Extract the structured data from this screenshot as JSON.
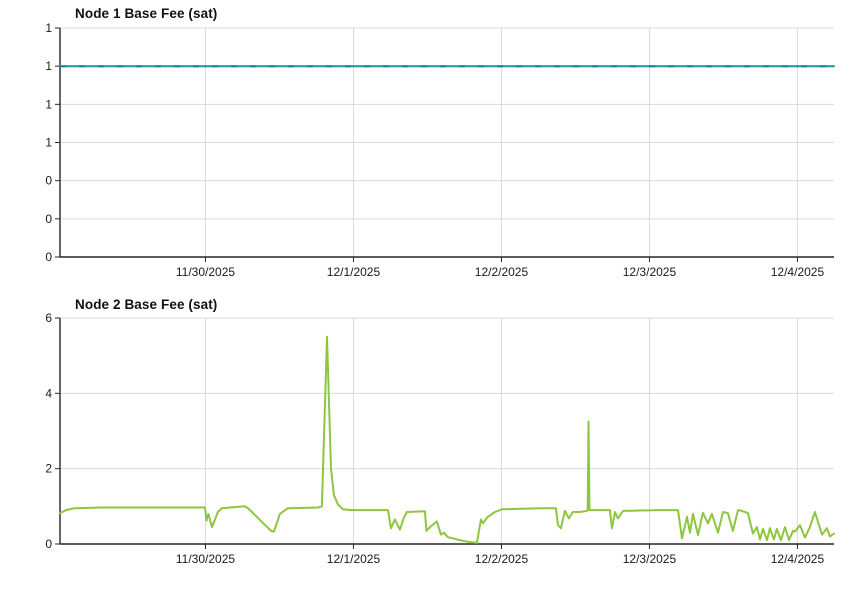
{
  "colors": {
    "background": "#ffffff",
    "grid": "#d9d9d9",
    "axis": "#262626",
    "text": "#1a1a1a",
    "node1_line": "#12999d",
    "node1_dash_overlay": "#0c7f8d",
    "node2_line": "#8dc63f"
  },
  "chart_data": [
    {
      "id": "node1-base-fee",
      "type": "line",
      "title": "Node 1 Base Fee (sat)",
      "xlabel": "",
      "ylabel": "",
      "grid": true,
      "legend": "none",
      "x_range_days": [
        -0.983,
        4.247
      ],
      "y_range": [
        0,
        1.2
      ],
      "y_ticks": [
        {
          "v": 1.2,
          "label": "1"
        },
        {
          "v": 1.0,
          "label": "1"
        },
        {
          "v": 0.8,
          "label": "1"
        },
        {
          "v": 0.6,
          "label": "1"
        },
        {
          "v": 0.4,
          "label": "0"
        },
        {
          "v": 0.2,
          "label": "0"
        },
        {
          "v": 0.0,
          "label": "0"
        }
      ],
      "x_ticks": [
        {
          "d": 0,
          "label": "11/30/2025"
        },
        {
          "d": 1,
          "label": "12/1/2025"
        },
        {
          "d": 2,
          "label": "12/2/2025"
        },
        {
          "d": 3,
          "label": "12/3/2025"
        },
        {
          "d": 4,
          "label": "12/4/2025"
        }
      ],
      "series": [
        {
          "name": "Node 1 Base Fee",
          "color": "#12999d",
          "dash_overlay_color": "#0c7f8d",
          "constant_value": 1,
          "points": [
            [
              -0.983,
              1
            ],
            [
              4.247,
              1
            ]
          ]
        }
      ]
    },
    {
      "id": "node2-base-fee",
      "type": "line",
      "title": "Node 2 Base Fee (sat)",
      "xlabel": "",
      "ylabel": "",
      "grid": true,
      "legend": "none",
      "x_range_days": [
        -0.983,
        4.247
      ],
      "y_range": [
        0,
        6
      ],
      "y_ticks": [
        {
          "v": 6,
          "label": "6"
        },
        {
          "v": 4,
          "label": "4"
        },
        {
          "v": 2,
          "label": "2"
        },
        {
          "v": 0,
          "label": "0"
        }
      ],
      "x_ticks": [
        {
          "d": 0,
          "label": "11/30/2025"
        },
        {
          "d": 1,
          "label": "12/1/2025"
        },
        {
          "d": 2,
          "label": "12/2/2025"
        },
        {
          "d": 3,
          "label": "12/3/2025"
        },
        {
          "d": 4,
          "label": "12/4/2025"
        }
      ],
      "series": [
        {
          "name": "Node 2 Base Fee",
          "color": "#8dc63f",
          "points": [
            [
              -0.983,
              0.82
            ],
            [
              -0.943,
              0.9
            ],
            [
              -0.882,
              0.95
            ],
            [
              -0.713,
              0.97
            ],
            [
              -0.003,
              0.97
            ],
            [
              0.007,
              0.62
            ],
            [
              0.02,
              0.8
            ],
            [
              0.044,
              0.45
            ],
            [
              0.084,
              0.85
            ],
            [
              0.111,
              0.95
            ],
            [
              0.267,
              1.0
            ],
            [
              0.287,
              0.95
            ],
            [
              0.443,
              0.35
            ],
            [
              0.463,
              0.33
            ],
            [
              0.503,
              0.8
            ],
            [
              0.557,
              0.95
            ],
            [
              0.76,
              0.97
            ],
            [
              0.787,
              1.0
            ],
            [
              0.821,
              5.5
            ],
            [
              0.848,
              2.0
            ],
            [
              0.868,
              1.3
            ],
            [
              0.895,
              1.05
            ],
            [
              0.929,
              0.92
            ],
            [
              0.99,
              0.9
            ],
            [
              1.233,
              0.9
            ],
            [
              1.253,
              0.42
            ],
            [
              1.28,
              0.65
            ],
            [
              1.314,
              0.38
            ],
            [
              1.341,
              0.7
            ],
            [
              1.361,
              0.85
            ],
            [
              1.483,
              0.87
            ],
            [
              1.493,
              0.35
            ],
            [
              1.517,
              0.45
            ],
            [
              1.564,
              0.6
            ],
            [
              1.591,
              0.25
            ],
            [
              1.611,
              0.3
            ],
            [
              1.638,
              0.18
            ],
            [
              1.672,
              0.15
            ],
            [
              1.72,
              0.1
            ],
            [
              1.787,
              0.05
            ],
            [
              1.834,
              0.03
            ],
            [
              1.861,
              0.65
            ],
            [
              1.875,
              0.55
            ],
            [
              1.902,
              0.7
            ],
            [
              1.956,
              0.85
            ],
            [
              2.003,
              0.92
            ],
            [
              2.26,
              0.95
            ],
            [
              2.368,
              0.95
            ],
            [
              2.382,
              0.5
            ],
            [
              2.402,
              0.42
            ],
            [
              2.429,
              0.88
            ],
            [
              2.456,
              0.68
            ],
            [
              2.483,
              0.85
            ],
            [
              2.53,
              0.85
            ],
            [
              2.578,
              0.88
            ],
            [
              2.583,
              0.9
            ],
            [
              2.588,
              3.25
            ],
            [
              2.595,
              0.9
            ],
            [
              2.733,
              0.9
            ],
            [
              2.747,
              0.42
            ],
            [
              2.767,
              0.85
            ],
            [
              2.787,
              0.68
            ],
            [
              2.821,
              0.88
            ],
            [
              3.071,
              0.9
            ],
            [
              3.193,
              0.9
            ],
            [
              3.22,
              0.15
            ],
            [
              3.254,
              0.72
            ],
            [
              3.274,
              0.3
            ],
            [
              3.294,
              0.8
            ],
            [
              3.328,
              0.24
            ],
            [
              3.361,
              0.83
            ],
            [
              3.395,
              0.55
            ],
            [
              3.422,
              0.8
            ],
            [
              3.463,
              0.3
            ],
            [
              3.497,
              0.85
            ],
            [
              3.53,
              0.82
            ],
            [
              3.564,
              0.35
            ],
            [
              3.598,
              0.9
            ],
            [
              3.625,
              0.88
            ],
            [
              3.666,
              0.82
            ],
            [
              3.699,
              0.28
            ],
            [
              3.726,
              0.45
            ],
            [
              3.747,
              0.12
            ],
            [
              3.767,
              0.4
            ],
            [
              3.794,
              0.1
            ],
            [
              3.814,
              0.42
            ],
            [
              3.841,
              0.12
            ],
            [
              3.861,
              0.4
            ],
            [
              3.888,
              0.1
            ],
            [
              3.916,
              0.45
            ],
            [
              3.943,
              0.1
            ],
            [
              3.97,
              0.35
            ],
            [
              3.983,
              0.33
            ],
            [
              4.017,
              0.5
            ],
            [
              4.051,
              0.17
            ],
            [
              4.084,
              0.45
            ],
            [
              4.118,
              0.85
            ],
            [
              4.166,
              0.25
            ],
            [
              4.199,
              0.42
            ],
            [
              4.22,
              0.2
            ],
            [
              4.247,
              0.28
            ]
          ]
        }
      ]
    }
  ]
}
